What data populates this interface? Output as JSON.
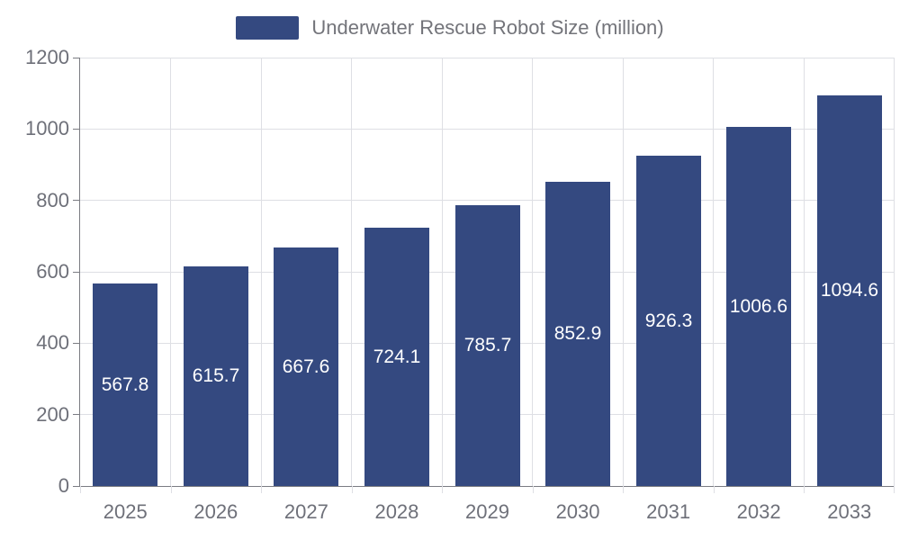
{
  "legend": {
    "label": "Underwater Rescue Robot Size (million)"
  },
  "chart_data": {
    "type": "bar",
    "title": "Underwater Rescue Robot Size (million)",
    "categories": [
      "2025",
      "2026",
      "2027",
      "2028",
      "2029",
      "2030",
      "2031",
      "2032",
      "2033"
    ],
    "values": [
      567.8,
      615.7,
      667.6,
      724.1,
      785.7,
      852.9,
      926.3,
      1006.6,
      1094.6
    ],
    "value_labels": [
      "567.8",
      "615.7",
      "667.6",
      "724.1",
      "785.7",
      "852.9",
      "926.3",
      "1006.6",
      "1094.6"
    ],
    "xlabel": "",
    "ylabel": "",
    "ylim": [
      0,
      1200
    ],
    "yticks": [
      0,
      200,
      400,
      600,
      800,
      1000,
      1200
    ],
    "grid": true,
    "legend_position": "top",
    "value_label_position": "inside-center",
    "colors": {
      "bar": "#344980",
      "value_label": "#ffffff",
      "grid_line": "#dedfe4",
      "axis_line": "#7b7c82",
      "tick_text": "#6e7079",
      "legend_text": "#73747a",
      "background": "#ffffff"
    }
  }
}
